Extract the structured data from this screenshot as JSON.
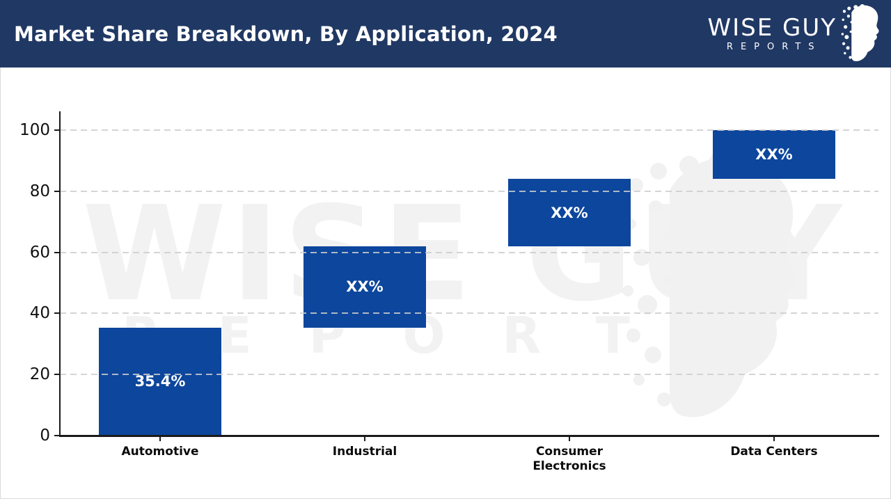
{
  "header": {
    "title": "Market Share Breakdown, By Application, 2024",
    "bg_color": "#203864",
    "logo": {
      "line1": "WISE GUY",
      "line2": "REPORTS"
    }
  },
  "watermark": {
    "line1": "WISE GUY",
    "line2": "REPORTS"
  },
  "chart_data": {
    "type": "bar",
    "subtype": "waterfall-floating-bars",
    "title": "Market Share Breakdown, By Application, 2024",
    "categories": [
      "Automotive",
      "Industrial",
      "Consumer Electronics",
      "Data Centers"
    ],
    "bars": [
      {
        "category": "Automotive",
        "start": 0,
        "end": 35.4,
        "label": "35.4%"
      },
      {
        "category": "Industrial",
        "start": 35.4,
        "end": 62,
        "label": "XX%"
      },
      {
        "category": "Consumer Electronics",
        "start": 62,
        "end": 84,
        "label": "XX%"
      },
      {
        "category": "Data Centers",
        "start": 84,
        "end": 100,
        "label": "XX%"
      }
    ],
    "y_ticks": [
      0,
      20,
      40,
      60,
      80,
      100
    ],
    "ylim": [
      0,
      108
    ],
    "xlabel": "",
    "ylabel": "",
    "grid": true,
    "legend": false,
    "bar_color": "#0c469d",
    "bar_value_color": "#ffffff",
    "axis_color": "#1a1a1a",
    "grid_color": "#cdcdcd"
  }
}
